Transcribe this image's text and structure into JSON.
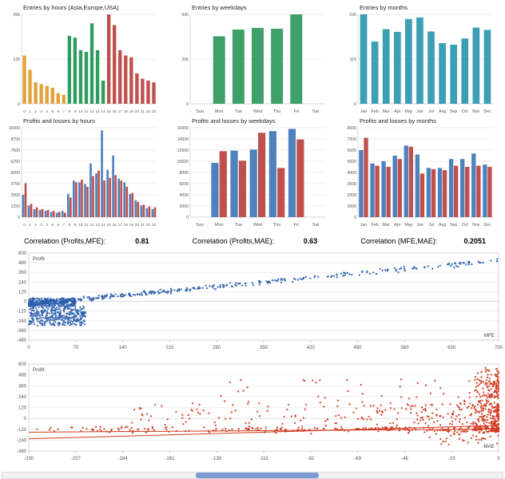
{
  "correlations": [
    {
      "label": "Correlation (Profits,MFE):",
      "value": "0.81"
    },
    {
      "label": "Correlation (Profits,MAE):",
      "value": "0.63"
    },
    {
      "label": "Correlation (MFE,MAE):",
      "value": "0.2051"
    }
  ],
  "chart_data": [
    {
      "id": "entries-by-hours",
      "type": "bar",
      "title": "Entries by hours (Asia,Europe,USA)",
      "categories": [
        "0",
        "1",
        "2",
        "3",
        "4",
        "5",
        "6",
        "7",
        "8",
        "9",
        "10",
        "11",
        "12",
        "13",
        "14",
        "15",
        "16",
        "17",
        "18",
        "19",
        "20",
        "21",
        "22",
        "23"
      ],
      "series": [
        {
          "values": [
            135,
            95,
            60,
            55,
            50,
            45,
            30,
            25,
            190,
            185,
            150,
            145,
            225,
            150,
            65,
            250,
            220,
            150,
            135,
            130,
            85,
            70,
            65,
            60
          ]
        }
      ],
      "color_groups": [
        {
          "until": 7,
          "color": "#e2a23b"
        },
        {
          "until": 14,
          "color": "#2f9d5f"
        },
        {
          "until": 23,
          "color": "#c0504d"
        }
      ],
      "y_ticks": [
        0,
        125,
        250
      ],
      "x_font": 4.6
    },
    {
      "id": "entries-by-weekdays",
      "type": "bar",
      "title": "Entries by weekdays",
      "categories": [
        "Sun",
        "Mon",
        "Tue",
        "Wed",
        "Thu",
        "Fri",
        "Sat"
      ],
      "series": [
        {
          "color": "#3fa06a",
          "values": [
            0,
            400,
            440,
            450,
            445,
            530,
            0
          ]
        }
      ],
      "y_ticks": [
        0,
        265,
        530
      ],
      "x_font": 5.5
    },
    {
      "id": "entries-by-months",
      "type": "bar",
      "title": "Entries by months",
      "categories": [
        "Jan",
        "Feb",
        "Mar",
        "Apr",
        "May",
        "Jun",
        "Jul",
        "Aug",
        "Sep",
        "Oct",
        "Nov",
        "Dec"
      ],
      "series": [
        {
          "color": "#3d9fb5",
          "values": [
            230,
            160,
            192,
            185,
            218,
            222,
            186,
            156,
            152,
            168,
            196,
            190
          ]
        }
      ],
      "y_ticks": [
        0,
        115,
        230
      ],
      "x_font": 5.2
    },
    {
      "id": "pl-by-hours",
      "type": "bar",
      "title": "Profits and losses by hours",
      "categories": [
        "0",
        "1",
        "2",
        "3",
        "4",
        "5",
        "6",
        "7",
        "8",
        "9",
        "10",
        "11",
        "12",
        "13",
        "14",
        "15",
        "16",
        "17",
        "18",
        "19",
        "20",
        "21",
        "22",
        "23"
      ],
      "series": [
        {
          "name": "Profits",
          "color": "#4f81bd",
          "values": [
            2500,
            1300,
            900,
            800,
            700,
            600,
            500,
            700,
            2600,
            4100,
            3900,
            3700,
            6000,
            4900,
            9700,
            5300,
            6900,
            4300,
            3900,
            2600,
            1900,
            1300,
            1000,
            900
          ]
        },
        {
          "name": "Losses",
          "color": "#c0504d",
          "values": [
            3800,
            1500,
            1100,
            900,
            800,
            700,
            600,
            500,
            2200,
            3900,
            4200,
            3400,
            4600,
            5200,
            4100,
            4400,
            4700,
            4100,
            3400,
            2700,
            1700,
            1400,
            1200,
            1100
          ]
        }
      ],
      "y_ticks": [
        0,
        1250,
        2500,
        3750,
        5000,
        6250,
        7500,
        8750,
        10000
      ],
      "x_font": 4.6
    },
    {
      "id": "pl-by-weekdays",
      "type": "bar",
      "title": "Profits and losses by weekdays",
      "categories": [
        "Sun",
        "Mon",
        "Tue",
        "Wed",
        "Thu",
        "Fri",
        "Sat"
      ],
      "series": [
        {
          "name": "Profits",
          "color": "#4f81bd",
          "values": [
            0,
            9700,
            11900,
            12100,
            15400,
            15800,
            0
          ]
        },
        {
          "name": "Losses",
          "color": "#c0504d",
          "values": [
            0,
            11800,
            10100,
            15100,
            8800,
            13900,
            0
          ]
        }
      ],
      "y_ticks": [
        0,
        2000,
        4000,
        6000,
        8000,
        10000,
        12000,
        14000,
        16000
      ],
      "x_font": 5.5
    },
    {
      "id": "pl-by-months",
      "type": "bar",
      "title": "Profits and losses by months",
      "categories": [
        "Jan",
        "Feb",
        "Mar",
        "Apr",
        "May",
        "Jun",
        "Jul",
        "Aug",
        "Sep",
        "Oct",
        "Nov",
        "Dec"
      ],
      "series": [
        {
          "name": "Profits",
          "color": "#4f81bd",
          "values": [
            6000,
            4800,
            5000,
            5500,
            6400,
            5600,
            4400,
            4400,
            5200,
            5200,
            5700,
            4700
          ]
        },
        {
          "name": "Losses",
          "color": "#c0504d",
          "values": [
            7100,
            4600,
            4500,
            5200,
            6300,
            3900,
            4300,
            4200,
            4600,
            4500,
            4600,
            4500
          ]
        }
      ],
      "y_ticks": [
        0,
        1000,
        2000,
        3000,
        4000,
        5000,
        6000,
        7000,
        8000
      ],
      "x_font": 5.2
    },
    {
      "id": "scatter-mfe",
      "type": "scatter",
      "y_label": "Profit",
      "x_label": "MFE",
      "x_range": [
        0,
        700
      ],
      "y_range": [
        -480,
        600
      ],
      "x_ticks": [
        0,
        70,
        140,
        210,
        280,
        350,
        420,
        490,
        560,
        630,
        700
      ],
      "y_ticks": [
        600,
        480,
        360,
        240,
        120,
        0,
        -120,
        -240,
        -360,
        -480
      ],
      "point_color": "#2b5fad",
      "seed": 13,
      "clusters": [
        {
          "count": 430,
          "x": {
            "type": "pow",
            "min": 0,
            "max": 700,
            "exp": 2.2
          },
          "y": {
            "slope": 0.78,
            "intercept": -35,
            "noise": 26
          }
        },
        {
          "count": 330,
          "x": {
            "type": "uniform",
            "min": 0,
            "max": 85
          },
          "y": {
            "min": -300,
            "max": -60
          }
        },
        {
          "count": 240,
          "x": {
            "type": "uniform",
            "min": 0,
            "max": 70
          },
          "y": {
            "min": -60,
            "max": 40
          }
        }
      ],
      "trend_lines": []
    },
    {
      "id": "scatter-mae",
      "type": "scatter",
      "y_label": "Profit",
      "x_label": "MAE",
      "x_range": [
        -230,
        0
      ],
      "y_range": [
        -360,
        600
      ],
      "x_ticks": [
        -230,
        -207,
        -184,
        -161,
        -138,
        -115,
        -92,
        -69,
        -46,
        -23,
        0
      ],
      "y_ticks": [
        600,
        480,
        360,
        240,
        120,
        0,
        -120,
        -240,
        -360
      ],
      "point_color": "#d03a1e",
      "seed": 29,
      "clusters": [
        {
          "count": 320,
          "x": {
            "type": "pow",
            "min": 0,
            "max": -230,
            "exp": 2.5
          },
          "y": {
            "slope": 0,
            "intercept": -120,
            "noise": 32
          }
        },
        {
          "count": 250,
          "x": {
            "type": "pow",
            "min": 0,
            "max": -180,
            "exp": 2.2
          },
          "y": {
            "min": -80,
            "max": 170
          }
        },
        {
          "count": 210,
          "x": {
            "type": "pow",
            "min": 0,
            "max": -12,
            "exp": 2.0
          },
          "y": {
            "min": -150,
            "max": 560
          }
        },
        {
          "count": 60,
          "x": {
            "type": "pow",
            "min": 0,
            "max": -140,
            "exp": 2.0
          },
          "y": {
            "min": 150,
            "max": 430
          }
        },
        {
          "count": 30,
          "x": {
            "type": "uniform",
            "min": -35,
            "max": 0
          },
          "y": {
            "min": -290,
            "max": -160
          }
        }
      ],
      "trend_lines": [
        {
          "x1": -230,
          "y1": -225,
          "x2": 0,
          "y2": -78
        },
        {
          "x1": -230,
          "y1": -152,
          "x2": 0,
          "y2": -118
        }
      ]
    }
  ]
}
